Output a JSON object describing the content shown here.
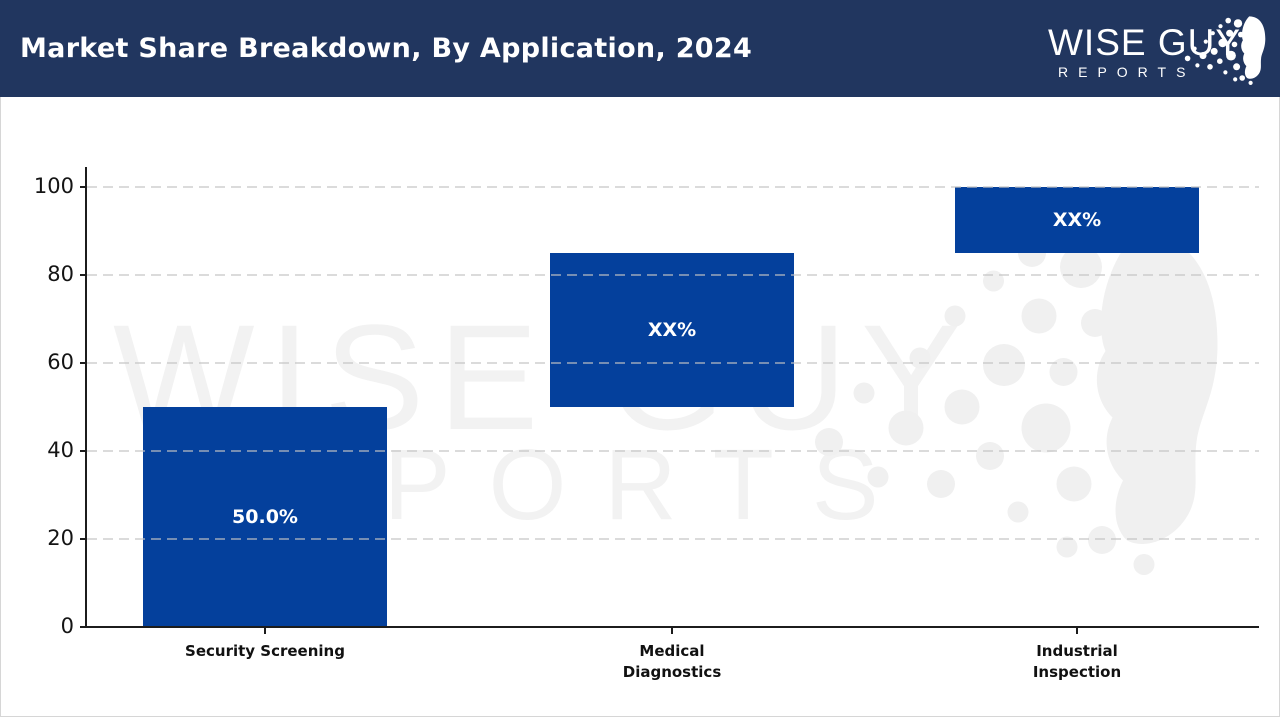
{
  "header": {
    "title": "Market Share Breakdown, By Application, 2024",
    "logo": {
      "line1": "WISE GUY",
      "line2": "REPORTS"
    }
  },
  "watermark": {
    "line1": "WISE GUY",
    "line2": "REPORTS"
  },
  "chart_data": {
    "type": "bar",
    "variant": "floating-waterfall",
    "title": "Market Share Breakdown, By Application, 2024",
    "categories": [
      "Security Screening",
      "Medical Diagnostics",
      "Industrial Inspection"
    ],
    "category_label_lines": [
      [
        "Security Screening"
      ],
      [
        "Medical",
        "Diagnostics"
      ],
      [
        "Industrial",
        "Inspection"
      ]
    ],
    "bars": [
      {
        "category": "Security Screening",
        "start": 0,
        "end": 50,
        "label": "50.0%"
      },
      {
        "category": "Medical Diagnostics",
        "start": 50,
        "end": 85,
        "label": "XX%"
      },
      {
        "category": "Industrial Inspection",
        "start": 85,
        "end": 100,
        "label": "XX%"
      }
    ],
    "ylabel": "",
    "xlabel": "",
    "ylim": [
      0,
      100
    ],
    "yticks": [
      0,
      20,
      40,
      60,
      80,
      100
    ],
    "grid": "horizontal dashed",
    "legend": "none"
  },
  "colors": {
    "header_bg": "#21365f",
    "bar_fill": "#04409c",
    "bar_label": "#ffffff",
    "axis": "#1c1c1c",
    "grid": "#c3c3c3",
    "tick_text": "#141414",
    "watermark": "#f2f2f2"
  }
}
